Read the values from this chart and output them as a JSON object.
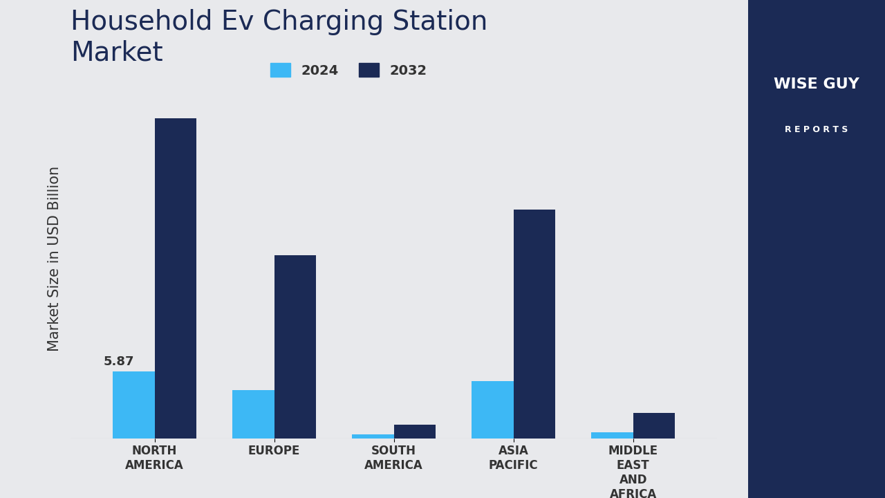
{
  "title": "Household Ev Charging Station\nMarket",
  "ylabel": "Market Size in USD Billion",
  "categories": [
    "NORTH\nAMERICA",
    "EUROPE",
    "SOUTH\nAMERICA",
    "ASIA\nPACIFIC",
    "MIDDLE\nEAST\nAND\nAFRICA"
  ],
  "values_2024": [
    5.87,
    4.2,
    0.35,
    5.0,
    0.55
  ],
  "values_2032": [
    28.0,
    16.0,
    1.2,
    20.0,
    2.2
  ],
  "color_2024": "#3DB8F5",
  "color_2032": "#1B2A55",
  "annotation_text": "5.87",
  "annotation_index": 0,
  "legend_labels": [
    "2024",
    "2032"
  ],
  "background_color": "#E8E9EC",
  "right_panel_color": "#1B2A55",
  "title_color": "#1B2A55",
  "bar_width": 0.35,
  "title_fontsize": 28,
  "ylabel_fontsize": 15,
  "tick_fontsize": 12,
  "legend_fontsize": 14
}
